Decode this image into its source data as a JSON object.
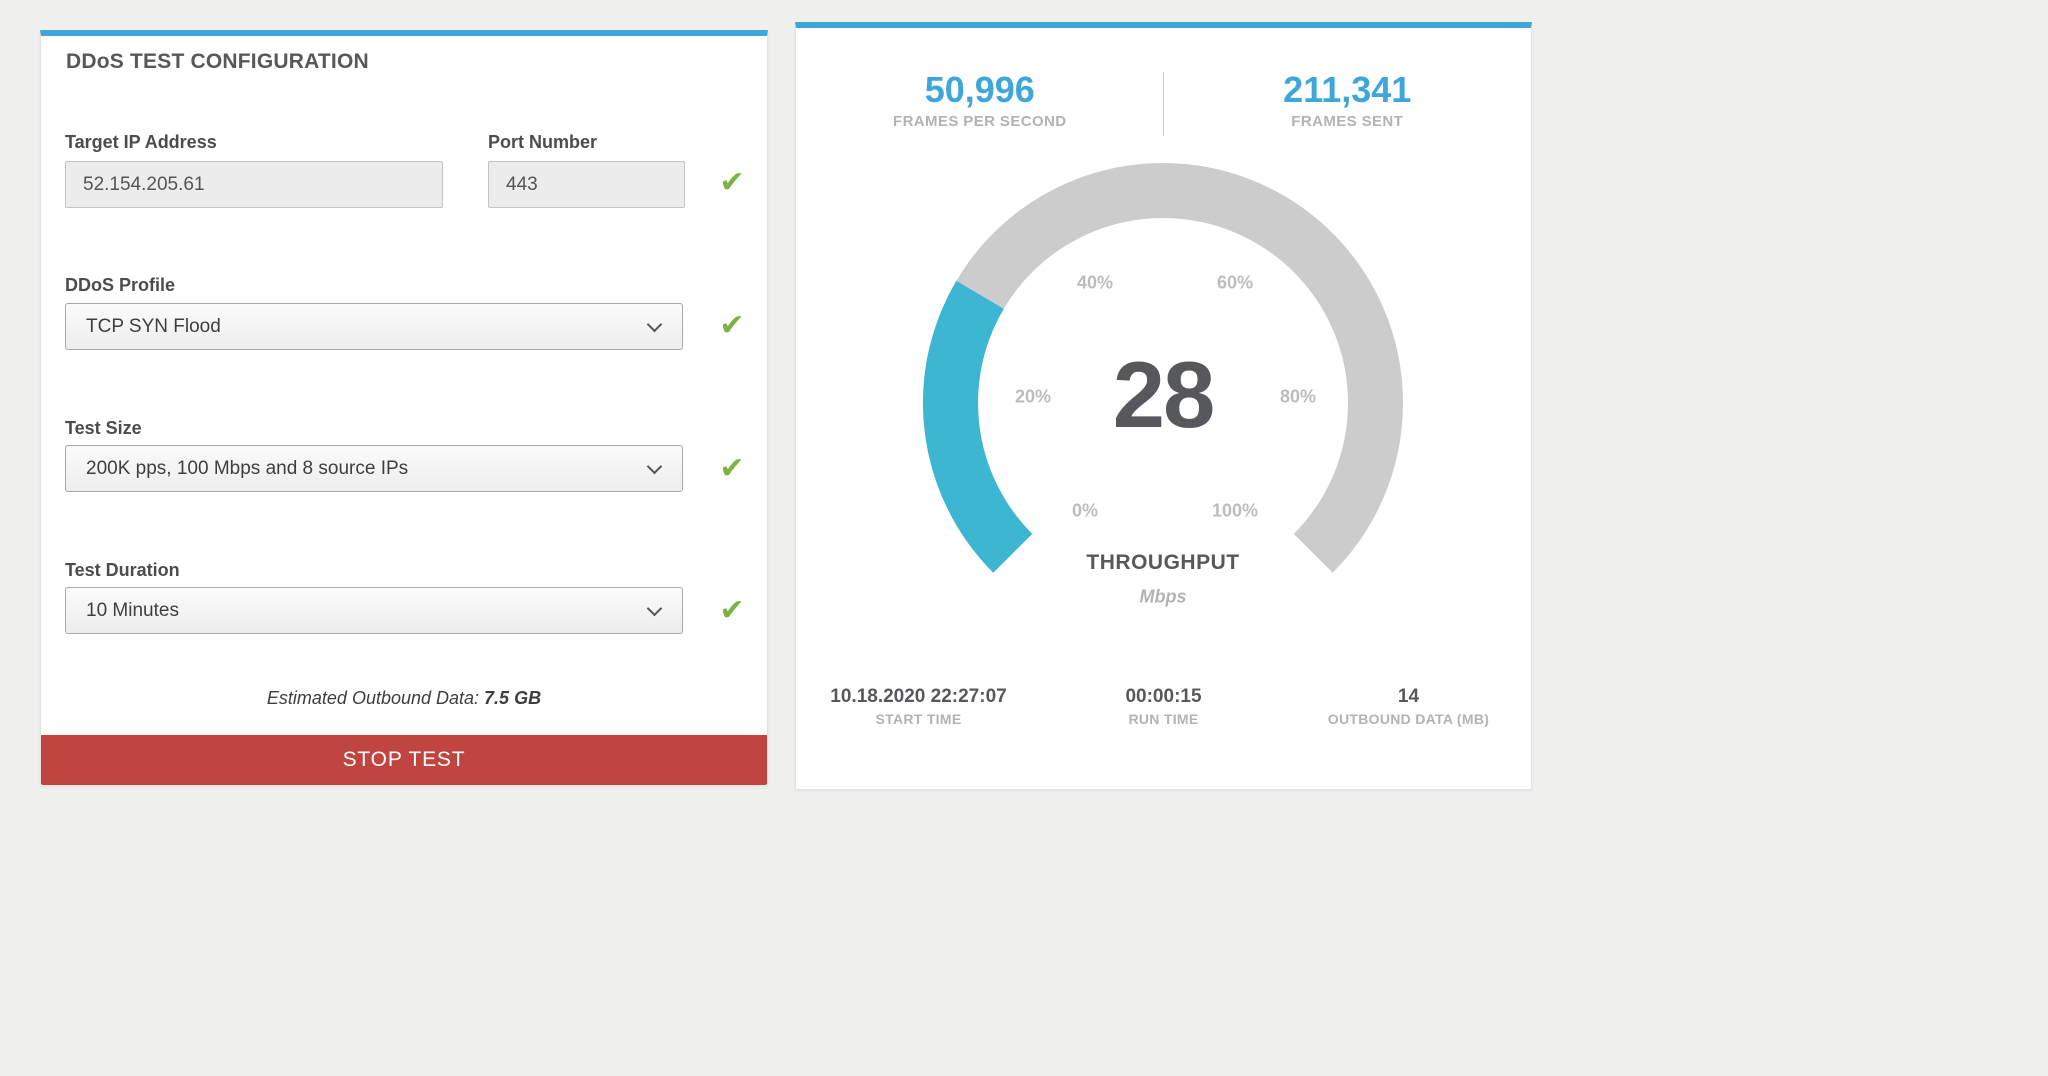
{
  "config": {
    "title": "DDoS TEST CONFIGURATION",
    "fields": {
      "target_ip": {
        "label": "Target IP Address",
        "value": "52.154.205.61"
      },
      "port": {
        "label": "Port Number",
        "value": "443"
      },
      "profile": {
        "label": "DDoS Profile",
        "value": "TCP SYN Flood"
      },
      "test_size": {
        "label": "Test Size",
        "value": "200K pps, 100 Mbps and 8 source IPs"
      },
      "duration": {
        "label": "Test Duration",
        "value": "10 Minutes"
      }
    },
    "estimate": {
      "label": "Estimated Outbound Data:",
      "value": "7.5 GB"
    },
    "stop_button": "STOP TEST"
  },
  "metrics": {
    "top_stats": [
      {
        "value": "50,996",
        "label": "FRAMES PER SECOND"
      },
      {
        "value": "211,341",
        "label": "FRAMES SENT"
      }
    ],
    "bottom_stats": [
      {
        "value": "10.18.2020 22:27:07",
        "label": "START TIME"
      },
      {
        "value": "00:00:15",
        "label": "RUN TIME"
      },
      {
        "value": "14",
        "label": "OUTBOUND DATA (MB)"
      }
    ]
  },
  "chart_data": {
    "type": "gauge",
    "title": "THROUGHPUT",
    "unit": "Mbps",
    "value": 28,
    "min": 0,
    "max": 100,
    "ticks": [
      "0%",
      "20%",
      "40%",
      "60%",
      "80%",
      "100%"
    ],
    "arc_start_deg": 225,
    "arc_span_deg": 270,
    "colors": {
      "fill": "#3cb6d1",
      "track": "#cccccc"
    }
  },
  "icons": {
    "valid_check": "✔"
  },
  "colors": {
    "accent": "#3fa6da",
    "muted": "#b3b3b3",
    "success": "#7cb342",
    "danger": "#c04540",
    "bg": "#f0f0ee",
    "text": "#57585b"
  }
}
